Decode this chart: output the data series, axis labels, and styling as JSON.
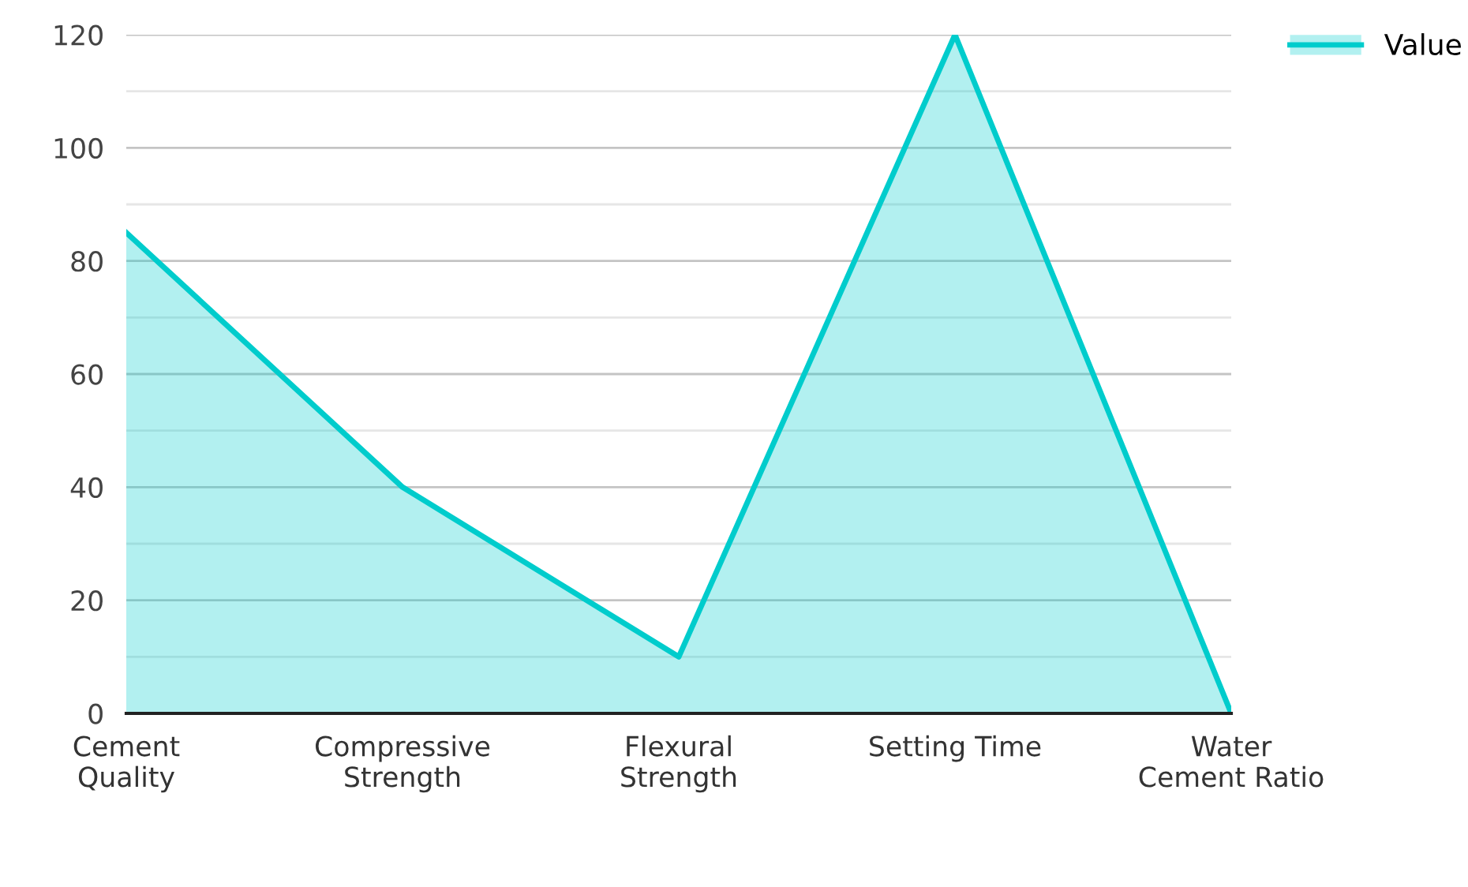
{
  "chart_data": {
    "type": "area",
    "categories": [
      "Cement\nQuality",
      "Compressive\nStrength",
      "Flexural\nStrength",
      "Setting Time",
      "Water\nCement Ratio"
    ],
    "series": [
      {
        "name": "Value",
        "color": "#00cccc",
        "values": [
          85,
          40,
          10,
          120,
          0
        ]
      }
    ],
    "ylim": [
      0,
      120
    ],
    "yticks": [
      0,
      {
        "value": 10,
        "label": null
      },
      20,
      {
        "value": 30,
        "label": null
      },
      40,
      {
        "value": 50,
        "label": null
      },
      60,
      {
        "value": 70,
        "label": null
      },
      80,
      {
        "value": 90,
        "label": null
      },
      100,
      {
        "value": 110,
        "label": null
      },
      120
    ],
    "grid": "y",
    "legend": "top right",
    "marker": "none"
  }
}
